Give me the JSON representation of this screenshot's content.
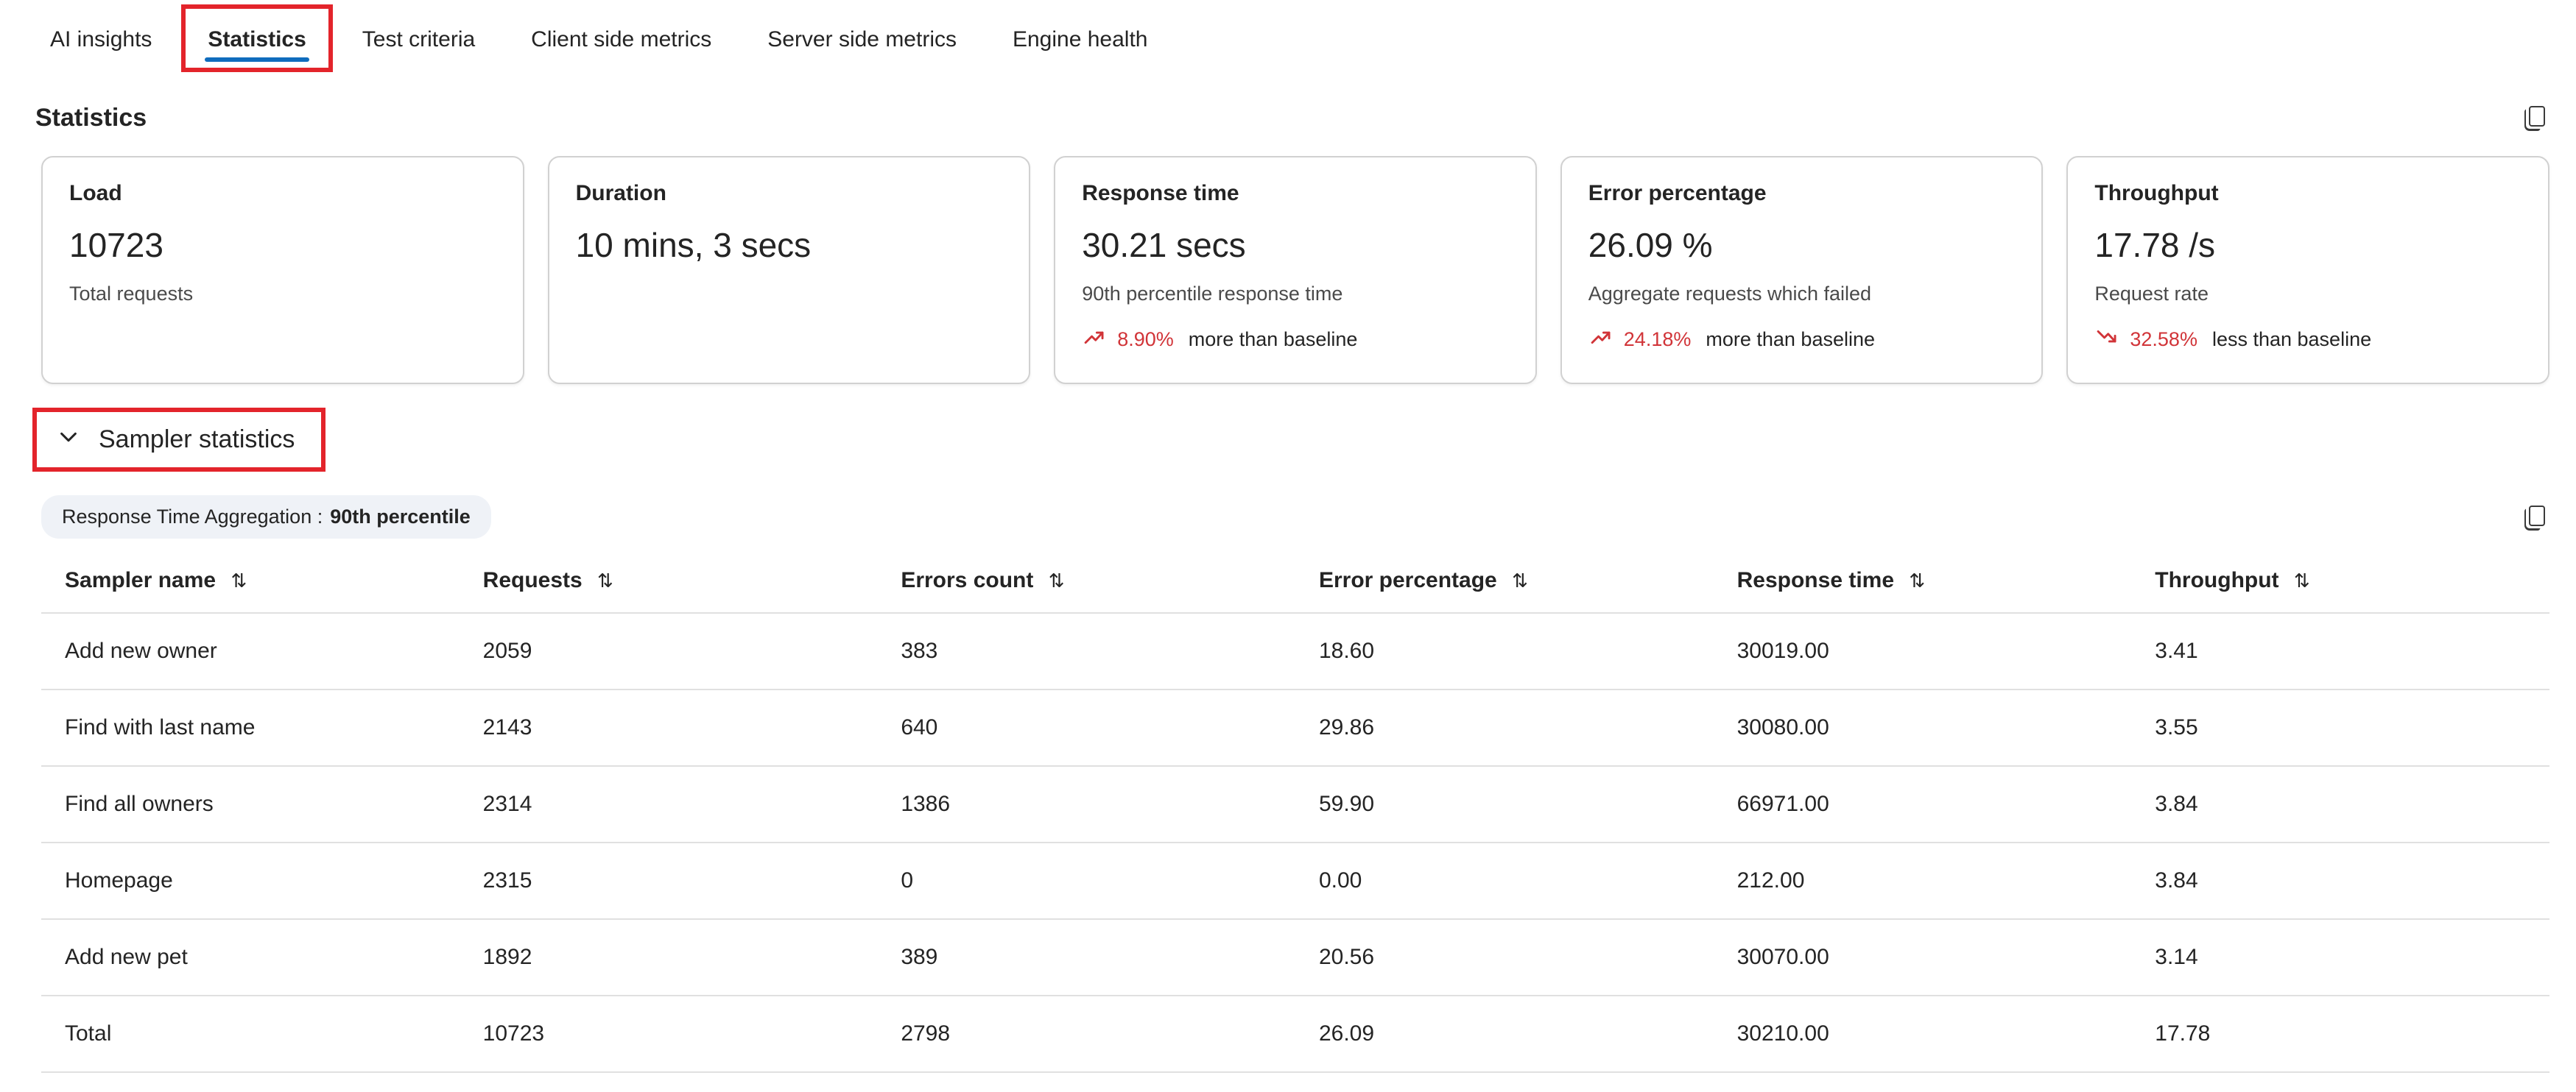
{
  "tabs": [
    {
      "label": "AI insights",
      "selected": false
    },
    {
      "label": "Statistics",
      "selected": true,
      "annotated": true
    },
    {
      "label": "Test criteria",
      "selected": false
    },
    {
      "label": "Client side metrics",
      "selected": false
    },
    {
      "label": "Server side metrics",
      "selected": false
    },
    {
      "label": "Engine health",
      "selected": false
    }
  ],
  "page_title": "Statistics",
  "cards": [
    {
      "title": "Load",
      "value": "10723",
      "caption": "Total requests"
    },
    {
      "title": "Duration",
      "value": "10 mins, 3 secs",
      "caption": ""
    },
    {
      "title": "Response time",
      "value": "30.21 secs",
      "caption": "90th percentile response time",
      "trend": {
        "direction": "up",
        "percent": "8.90%",
        "text": "more than baseline"
      }
    },
    {
      "title": "Error percentage",
      "value": "26.09 %",
      "caption": "Aggregate requests which failed",
      "trend": {
        "direction": "up",
        "percent": "24.18%",
        "text": "more than baseline"
      }
    },
    {
      "title": "Throughput",
      "value": "17.78 /s",
      "caption": "Request rate",
      "trend": {
        "direction": "down",
        "percent": "32.58%",
        "text": "less than baseline"
      }
    }
  ],
  "sampler_section": {
    "title": "Sampler statistics",
    "aggregation_label": "Response Time Aggregation :",
    "aggregation_value": "90th percentile"
  },
  "table": {
    "sort_glyph": "⇅",
    "columns": [
      "Sampler name",
      "Requests",
      "Errors count",
      "Error percentage",
      "Response time",
      "Throughput"
    ],
    "rows": [
      [
        "Add new owner",
        "2059",
        "383",
        "18.60",
        "30019.00",
        "3.41"
      ],
      [
        "Find with last name",
        "2143",
        "640",
        "29.86",
        "30080.00",
        "3.55"
      ],
      [
        "Find all owners",
        "2314",
        "1386",
        "59.90",
        "66971.00",
        "3.84"
      ],
      [
        "Homepage",
        "2315",
        "0",
        "0.00",
        "212.00",
        "3.84"
      ],
      [
        "Add new pet",
        "1892",
        "389",
        "20.56",
        "30070.00",
        "3.14"
      ],
      [
        "Total",
        "10723",
        "2798",
        "26.09",
        "30210.00",
        "17.78"
      ]
    ]
  },
  "colors": {
    "accent": "#0f6cbd",
    "trend_red": "#d13438",
    "annotation_red": "#e3242b",
    "card_border": "#d1d1d1"
  }
}
